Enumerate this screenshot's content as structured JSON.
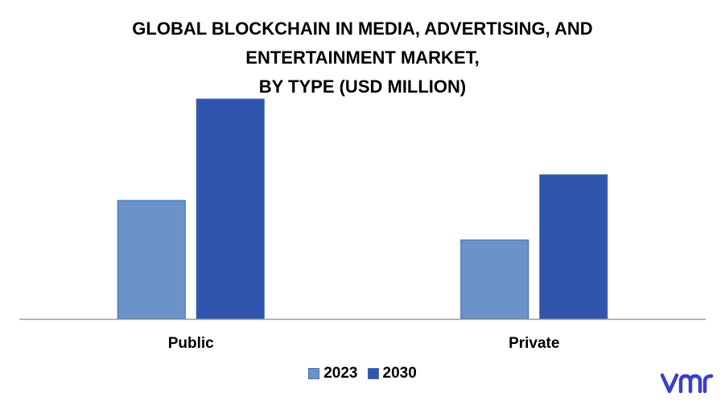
{
  "title_lines": [
    "GLOBAL BLOCKCHAIN IN MEDIA, ADVERTISING, AND",
    "ENTERTAINMENT MARKET,",
    "BY TYPE (USD MILLION)"
  ],
  "chart_data": {
    "type": "bar",
    "title": "GLOBAL BLOCKCHAIN IN MEDIA, ADVERTISING, AND ENTERTAINMENT MARKET, BY TYPE (USD MILLION)",
    "categories": [
      "Public",
      "Private"
    ],
    "series": [
      {
        "name": "2023",
        "values": [
          147,
          98
        ],
        "color": "#6b93c9"
      },
      {
        "name": "2030",
        "values": [
          273,
          179
        ],
        "color": "#2f55ae"
      }
    ],
    "ylim": [
      0,
      280
    ],
    "grid": false,
    "legend_position": "bottom"
  },
  "legend": {
    "items": [
      {
        "label": "2023",
        "color": "#6b93c9"
      },
      {
        "label": "2030",
        "color": "#2f55ae"
      }
    ]
  },
  "logo": {
    "icon": "vmr-logo-icon",
    "color": "#3c3fc8"
  }
}
